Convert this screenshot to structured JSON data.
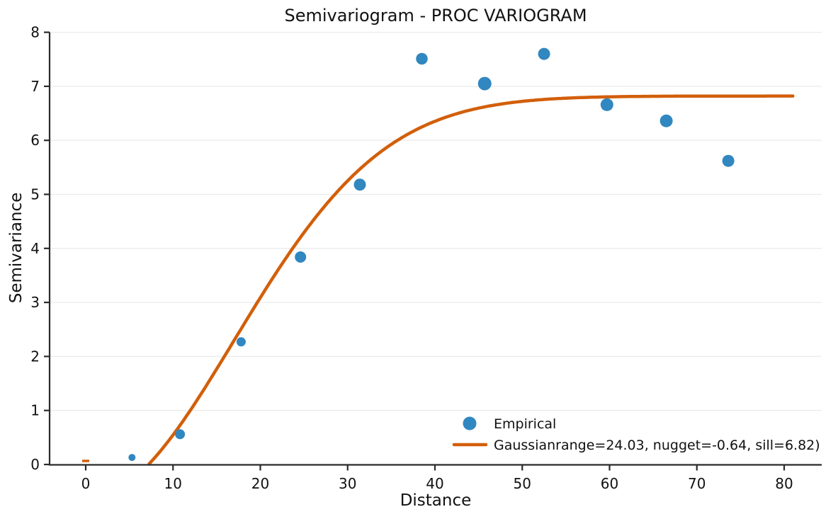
{
  "figure": {
    "title": "Semivariogram - PROC VARIOGRAM"
  },
  "chart_data": {
    "type": "scatter",
    "title": "Semivariogram - PROC VARIOGRAM",
    "xlabel": "Distance",
    "ylabel": "Semivariance",
    "xlim": [
      -4,
      84
    ],
    "ylim": [
      0,
      8
    ],
    "xticks": [
      0,
      10,
      20,
      30,
      40,
      50,
      60,
      70,
      80
    ],
    "yticks": [
      0,
      1,
      2,
      3,
      4,
      5,
      6,
      7,
      8
    ],
    "grid": "horizontal-only",
    "colors": {
      "empirical": "#3187c0",
      "model": "#d25f0a",
      "spine": "#2b2b2b",
      "gridline": "#ebebeb",
      "text": "#111111"
    },
    "series": [
      {
        "name": "Empirical",
        "type": "scatter",
        "x": [
          5.3,
          10.8,
          17.8,
          24.6,
          31.4,
          38.5,
          45.7,
          52.5,
          59.7,
          66.5,
          73.6
        ],
        "y": [
          0.13,
          0.56,
          2.27,
          3.84,
          5.18,
          7.51,
          7.05,
          7.6,
          6.66,
          6.36,
          5.62
        ],
        "marker_diameter_px": [
          10,
          14,
          13,
          16,
          17,
          16.5,
          19,
          17,
          18,
          18,
          17
        ]
      },
      {
        "name": "Gaussianrange=24.03, nugget=-0.64, sill=6.82)",
        "type": "line",
        "model": "gaussian",
        "params": {
          "range": 24.03,
          "nugget": -0.64,
          "sill": 6.82
        },
        "x_range": [
          0,
          81
        ]
      }
    ],
    "legend": {
      "position": "lower-right",
      "entries": [
        {
          "label": "Empirical",
          "marker": "circle"
        },
        {
          "label": "Gaussianrange=24.03, nugget=-0.64, sill=6.82)",
          "marker": "line"
        }
      ]
    }
  }
}
